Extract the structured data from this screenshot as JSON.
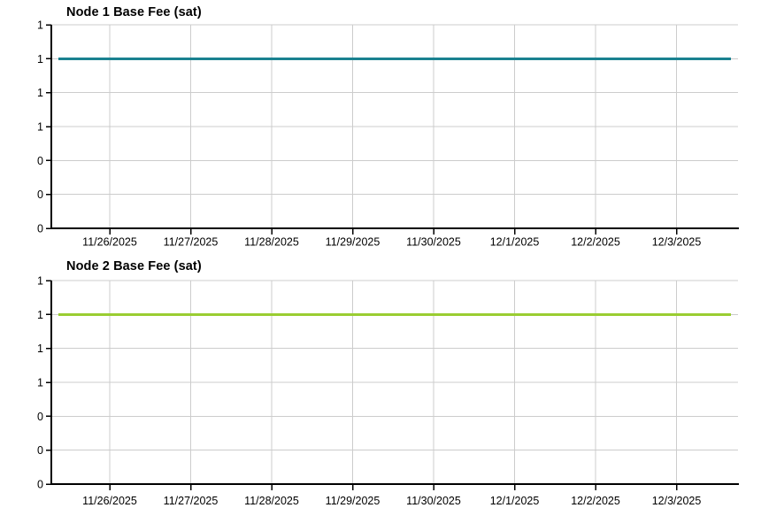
{
  "page": {
    "background": "#ffffff"
  },
  "colors": {
    "axis": "#000000",
    "gridline": "#cccccc",
    "tick": "#000000",
    "label": "#000000"
  },
  "chart_data": [
    {
      "type": "line",
      "title": "Node 1 Base Fee (sat)",
      "x_tick_labels": [
        "11/26/2025",
        "11/27/2025",
        "11/28/2025",
        "11/29/2025",
        "11/30/2025",
        "12/1/2025",
        "12/2/2025",
        "12/3/2025"
      ],
      "y_tick_labels": [
        "1",
        "1",
        "1",
        "1",
        "0",
        "0",
        "0"
      ],
      "ylim": [
        0,
        1.2
      ],
      "y_tick_step": 0.2,
      "grid": true,
      "legend_position": "none",
      "series": [
        {
          "name": "Node 1 Base Fee (sat)",
          "constant_value": 1,
          "color": "#1a8190"
        }
      ]
    },
    {
      "type": "line",
      "title": "Node 2 Base Fee (sat)",
      "x_tick_labels": [
        "11/26/2025",
        "11/27/2025",
        "11/28/2025",
        "11/29/2025",
        "11/30/2025",
        "12/1/2025",
        "12/2/2025",
        "12/3/2025"
      ],
      "y_tick_labels": [
        "1",
        "1",
        "1",
        "1",
        "0",
        "0",
        "0"
      ],
      "ylim": [
        0,
        1.2
      ],
      "y_tick_step": 0.2,
      "grid": true,
      "legend_position": "none",
      "series": [
        {
          "name": "Node 2 Base Fee (sat)",
          "constant_value": 1,
          "color": "#9acd32"
        }
      ]
    }
  ]
}
